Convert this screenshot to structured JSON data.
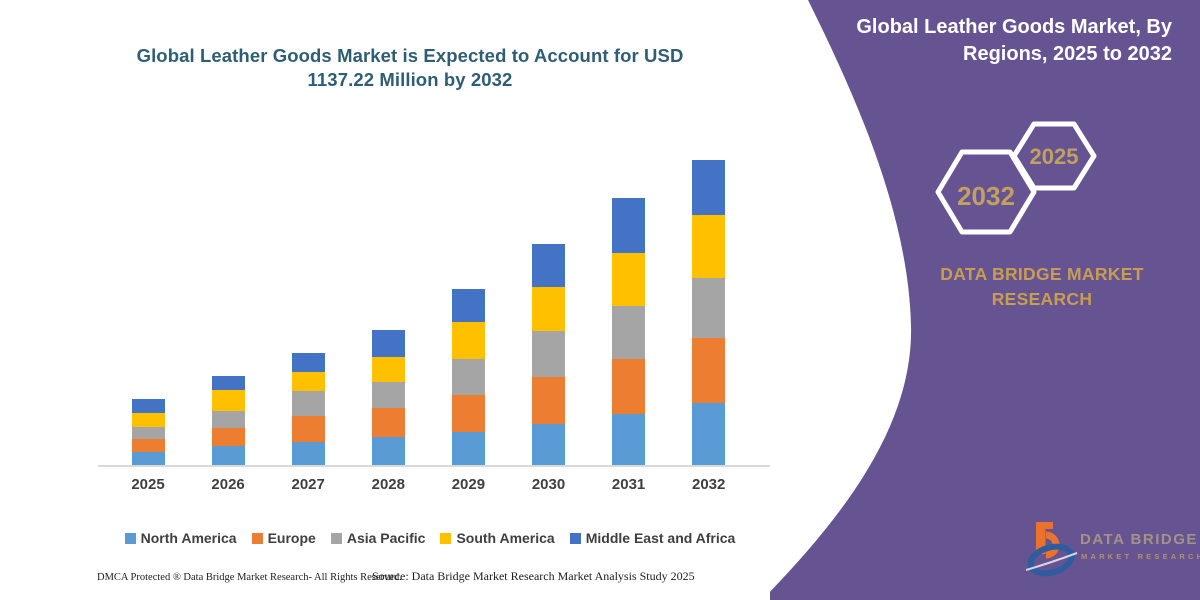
{
  "header": {
    "title_line1": "Global Leather Goods Market is Expected to Account for USD",
    "title_line2": "1137.22 Million by 2032"
  },
  "chart_data": {
    "type": "bar",
    "stacked": true,
    "title": "Global Leather Goods Market is Expected to Account for USD 1137.22 Million by 2032",
    "unit": "USD Million",
    "categories": [
      "2025",
      "2026",
      "2027",
      "2028",
      "2029",
      "2030",
      "2031",
      "2032"
    ],
    "x_axis_labels": [
      "2025",
      "2026",
      "2027",
      "2028",
      "2029",
      "2030",
      "2031",
      "2032"
    ],
    "series": [
      {
        "name": "North America",
        "color": "#5B9BD5",
        "values": [
          48,
          71,
          86,
          104,
          123,
          153,
          190,
          231.22
        ]
      },
      {
        "name": "Europe",
        "color": "#ED7D31",
        "values": [
          48,
          67,
          97,
          108,
          138,
          175,
          205,
          242
        ]
      },
      {
        "name": "Asia Pacific",
        "color": "#A5A5A5",
        "values": [
          45,
          63,
          93,
          97,
          134,
          172,
          198,
          224
        ]
      },
      {
        "name": "South America",
        "color": "#FFC000",
        "values": [
          52,
          78,
          71,
          93,
          138,
          164,
          198,
          235
        ]
      },
      {
        "name": "Middle East and Africa",
        "color": "#4472C4",
        "values": [
          53,
          53,
          71,
          101,
          123,
          160,
          205,
          205
        ]
      }
    ],
    "totals": [
      246,
      332,
      418,
      503,
      656,
      824,
      996,
      1137.22
    ],
    "y_axis": "hidden",
    "ylim": [
      0,
      1200
    ],
    "grid": false,
    "legend_position": "bottom"
  },
  "footer": {
    "dmca": "DMCA Protected ® Data Bridge Market Research-  All Rights Reserved.",
    "source": "Source: Data Bridge Market Research  Market Analysis Study 2025"
  },
  "panel": {
    "title_line1": "Global Leather Goods Market, By",
    "title_line2": "Regions, 2025 to 2032",
    "hex_large_label": "2032",
    "hex_small_label": "2025",
    "brand_line1": "DATA BRIDGE MARKET",
    "brand_line2": "RESEARCH",
    "bg_color": "#665492",
    "accent_color": "#C79D51",
    "hex_year_color": "#C2A05E"
  },
  "logo": {
    "name_line1": "DATA BRIDGE",
    "name_line2": "MARKET RESEARCH"
  },
  "colors": {
    "title": "#2F5D73",
    "axis_line": "#D9D9D9",
    "tick_label": "#3F3F3F",
    "logo_orange": "#E8722E",
    "logo_blue": "#2E5C9E"
  }
}
